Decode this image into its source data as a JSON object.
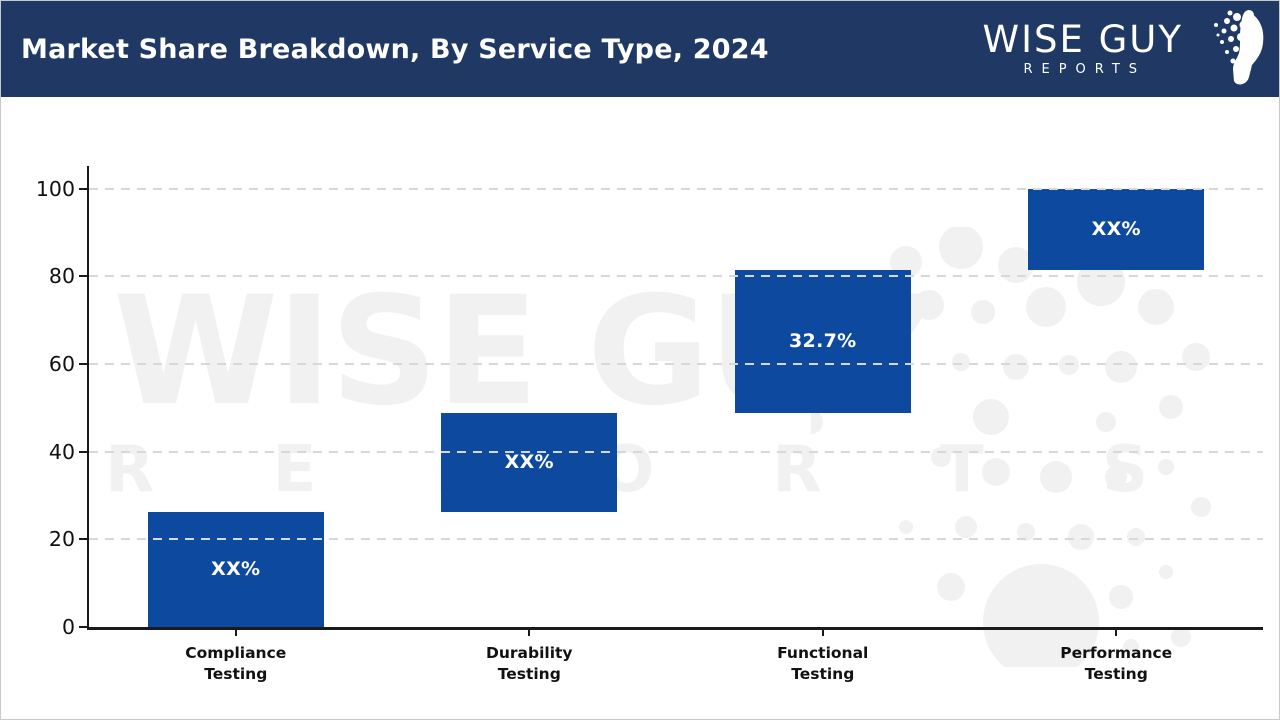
{
  "header": {
    "title": "Market Share Breakdown, By Service Type, 2024",
    "bg_color": "#203864",
    "logo": {
      "line1": "WISE GUY",
      "line2": "REPORTS"
    }
  },
  "watermark": {
    "line1": "WISE GUY",
    "line2": "R E P O R T S",
    "color": "#f1f1f1"
  },
  "chart_data": {
    "type": "bar",
    "subtype": "waterfall",
    "title": "Market Share Breakdown, By Service Type, 2024",
    "categories": [
      "Compliance Testing",
      "Durability Testing",
      "Functional Testing",
      "Performance Testing"
    ],
    "segments": [
      {
        "category": "Compliance Testing",
        "start": 0,
        "end": 26.3,
        "label": "XX%"
      },
      {
        "category": "Durability Testing",
        "start": 26.3,
        "end": 48.8,
        "label": "XX%"
      },
      {
        "category": "Functional Testing",
        "start": 48.8,
        "end": 81.5,
        "label": "32.7%"
      },
      {
        "category": "Performance Testing",
        "start": 81.5,
        "end": 100,
        "label": "XX%"
      }
    ],
    "yticks": [
      0,
      20,
      40,
      60,
      80,
      100
    ],
    "ylim": [
      0,
      105
    ],
    "xlabel": "",
    "ylabel": "",
    "grid": true,
    "grid_style": "dashed",
    "legend": false,
    "bar_color": "#0d4a9f",
    "grid_color": "#d8d8d8",
    "axis_color": "#1a1a1a"
  }
}
